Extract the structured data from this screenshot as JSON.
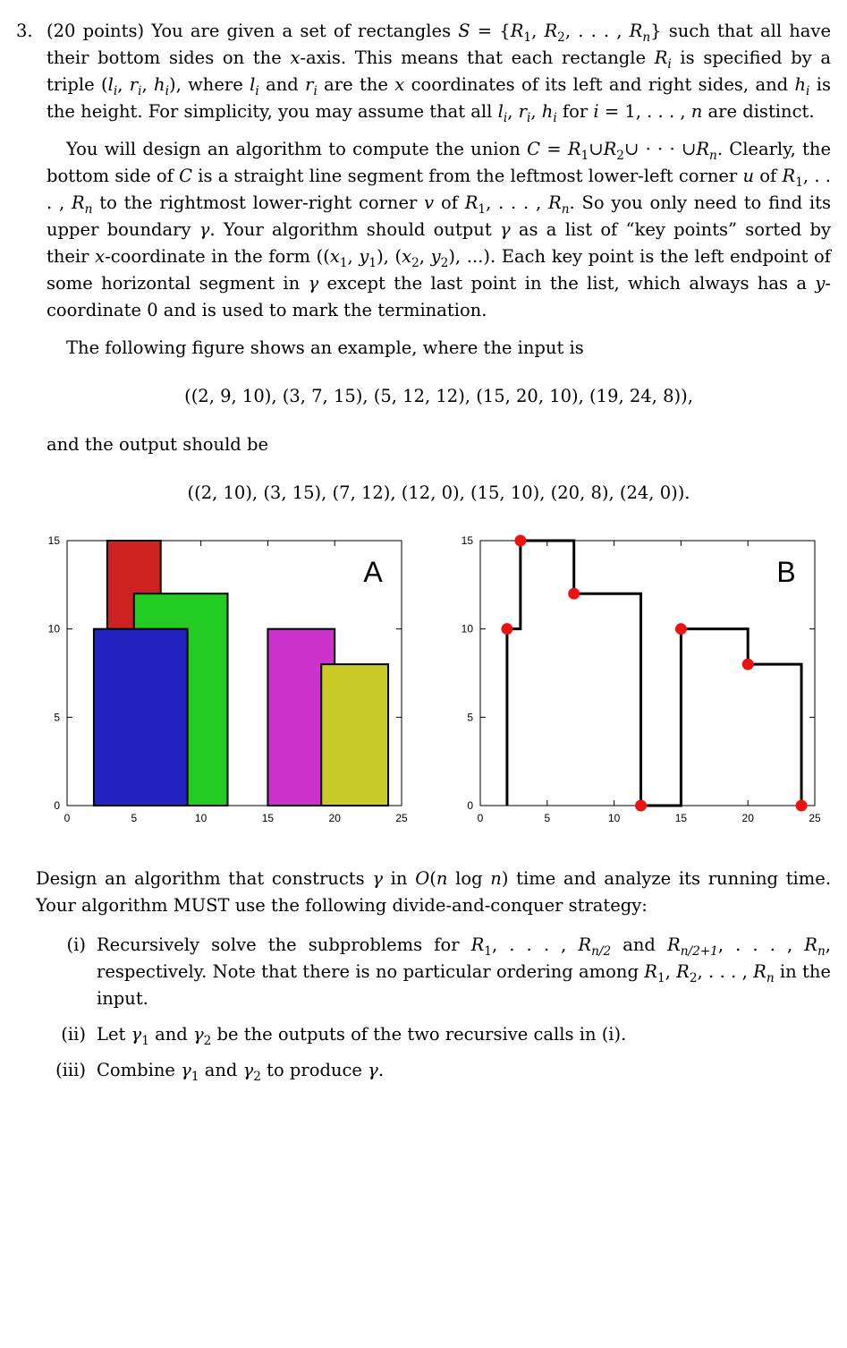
{
  "problem": {
    "number": "3.",
    "para1_runs": [
      {
        "t": "(20 points) You are given a set of rectangles "
      },
      {
        "t": "S",
        "i": 1
      },
      {
        "t": " = {"
      },
      {
        "t": "R",
        "i": 1
      },
      {
        "t": "1",
        "sub": 1
      },
      {
        "t": ", "
      },
      {
        "t": "R",
        "i": 1
      },
      {
        "t": "2",
        "sub": 1
      },
      {
        "t": ", . . . , "
      },
      {
        "t": "R",
        "i": 1
      },
      {
        "t": "n",
        "sub": 1,
        "i": 1
      },
      {
        "t": "} such that all have their bottom sides on the "
      },
      {
        "t": "x",
        "i": 1
      },
      {
        "t": "-axis.  This means that each rectangle "
      },
      {
        "t": "R",
        "i": 1
      },
      {
        "t": "i",
        "sub": 1,
        "i": 1
      },
      {
        "t": " is specified by a triple ("
      },
      {
        "t": "l",
        "i": 1
      },
      {
        "t": "i",
        "sub": 1,
        "i": 1
      },
      {
        "t": ", "
      },
      {
        "t": "r",
        "i": 1
      },
      {
        "t": "i",
        "sub": 1,
        "i": 1
      },
      {
        "t": ", "
      },
      {
        "t": "h",
        "i": 1
      },
      {
        "t": "i",
        "sub": 1,
        "i": 1
      },
      {
        "t": "), where "
      },
      {
        "t": "l",
        "i": 1
      },
      {
        "t": "i",
        "sub": 1,
        "i": 1
      },
      {
        "t": " and "
      },
      {
        "t": "r",
        "i": 1
      },
      {
        "t": "i",
        "sub": 1,
        "i": 1
      },
      {
        "t": " are the "
      },
      {
        "t": "x",
        "i": 1
      },
      {
        "t": " coordinates of its left and right sides, and "
      },
      {
        "t": "h",
        "i": 1
      },
      {
        "t": "i",
        "sub": 1,
        "i": 1
      },
      {
        "t": " is the height.  For simplicity, you may assume that all "
      },
      {
        "t": "l",
        "i": 1
      },
      {
        "t": "i",
        "sub": 1,
        "i": 1
      },
      {
        "t": ", "
      },
      {
        "t": "r",
        "i": 1
      },
      {
        "t": "i",
        "sub": 1,
        "i": 1
      },
      {
        "t": ", "
      },
      {
        "t": "h",
        "i": 1
      },
      {
        "t": "i",
        "sub": 1,
        "i": 1
      },
      {
        "t": " for "
      },
      {
        "t": "i",
        "i": 1
      },
      {
        "t": " = 1, . . . , "
      },
      {
        "t": "n",
        "i": 1
      },
      {
        "t": " are distinct."
      }
    ],
    "para2_runs": [
      {
        "t": "You will design an algorithm to compute the union "
      },
      {
        "t": "C",
        "i": 1
      },
      {
        "t": " = "
      },
      {
        "t": "R",
        "i": 1
      },
      {
        "t": "1",
        "sub": 1
      },
      {
        "t": "∪"
      },
      {
        "t": "R",
        "i": 1
      },
      {
        "t": "2",
        "sub": 1
      },
      {
        "t": "∪ · · · ∪"
      },
      {
        "t": "R",
        "i": 1
      },
      {
        "t": "n",
        "sub": 1,
        "i": 1
      },
      {
        "t": ". Clearly, the bottom side of "
      },
      {
        "t": "C",
        "i": 1
      },
      {
        "t": " is a straight line segment from the leftmost lower-left corner "
      },
      {
        "t": "u",
        "i": 1
      },
      {
        "t": " of "
      },
      {
        "t": "R",
        "i": 1
      },
      {
        "t": "1",
        "sub": 1
      },
      {
        "t": ", . . . , "
      },
      {
        "t": "R",
        "i": 1
      },
      {
        "t": "n",
        "sub": 1,
        "i": 1
      },
      {
        "t": " to the rightmost lower-right corner "
      },
      {
        "t": "v",
        "i": 1
      },
      {
        "t": " of "
      },
      {
        "t": "R",
        "i": 1
      },
      {
        "t": "1",
        "sub": 1
      },
      {
        "t": ", . . . , "
      },
      {
        "t": "R",
        "i": 1
      },
      {
        "t": "n",
        "sub": 1,
        "i": 1
      },
      {
        "t": ".  So you only need to find its upper boundary "
      },
      {
        "t": "γ",
        "i": 1
      },
      {
        "t": ".  Your algorithm should output "
      },
      {
        "t": "γ",
        "i": 1
      },
      {
        "t": " as a list of “key points” sorted by their "
      },
      {
        "t": "x",
        "i": 1
      },
      {
        "t": "-coordinate in the form (("
      },
      {
        "t": "x",
        "i": 1
      },
      {
        "t": "1",
        "sub": 1
      },
      {
        "t": ", "
      },
      {
        "t": "y",
        "i": 1
      },
      {
        "t": "1",
        "sub": 1
      },
      {
        "t": "), ("
      },
      {
        "t": "x",
        "i": 1
      },
      {
        "t": "2",
        "sub": 1
      },
      {
        "t": ", "
      },
      {
        "t": "y",
        "i": 1
      },
      {
        "t": "2",
        "sub": 1
      },
      {
        "t": "), ...).  Each key point is the left endpoint of some horizontal segment in "
      },
      {
        "t": "γ",
        "i": 1
      },
      {
        "t": " except the last point in the list, which always has a "
      },
      {
        "t": "y",
        "i": 1
      },
      {
        "t": "-coordinate 0 and is used to mark the termination."
      }
    ],
    "para3": "The following figure shows an example, where the input is",
    "input_math": "((2, 9, 10), (3, 7, 15), (5, 12, 12), (15, 20, 10), (19, 24, 8)),",
    "output_intro": "and the output should be",
    "output_math": "((2, 10), (3, 15), (7, 12), (12, 0), (15, 10), (20, 8), (24, 0)).",
    "design_runs": [
      {
        "t": "Design an algorithm that constructs "
      },
      {
        "t": "γ",
        "i": 1
      },
      {
        "t": " in "
      },
      {
        "t": "O",
        "i": 1
      },
      {
        "t": "("
      },
      {
        "t": "n",
        "i": 1
      },
      {
        "t": " log "
      },
      {
        "t": "n",
        "i": 1
      },
      {
        "t": ") time and analyze its running time.  Your algorithm MUST use the following divide-and-conquer strategy:"
      }
    ],
    "steps": [
      {
        "label": "(i)",
        "runs": [
          {
            "t": "Recursively solve the subproblems for "
          },
          {
            "t": "R",
            "i": 1
          },
          {
            "t": "1",
            "sub": 1
          },
          {
            "t": ", . . . , "
          },
          {
            "t": "R",
            "i": 1
          },
          {
            "t": "n/2",
            "sub": 1,
            "i": 1
          },
          {
            "t": " and "
          },
          {
            "t": "R",
            "i": 1
          },
          {
            "t": "n/2+1",
            "sub": 1,
            "i": 1
          },
          {
            "t": ", . . . , "
          },
          {
            "t": "R",
            "i": 1
          },
          {
            "t": "n",
            "sub": 1,
            "i": 1
          },
          {
            "t": ", respectively.  Note that there is no particular ordering among "
          },
          {
            "t": "R",
            "i": 1
          },
          {
            "t": "1",
            "sub": 1
          },
          {
            "t": ", "
          },
          {
            "t": "R",
            "i": 1
          },
          {
            "t": "2",
            "sub": 1
          },
          {
            "t": ", . . . , "
          },
          {
            "t": "R",
            "i": 1
          },
          {
            "t": "n",
            "sub": 1,
            "i": 1
          },
          {
            "t": " in the input."
          }
        ]
      },
      {
        "label": "(ii)",
        "runs": [
          {
            "t": "Let "
          },
          {
            "t": "γ",
            "i": 1
          },
          {
            "t": "1",
            "sub": 1
          },
          {
            "t": " and "
          },
          {
            "t": "γ",
            "i": 1
          },
          {
            "t": "2",
            "sub": 1
          },
          {
            "t": " be the outputs of the two recursive calls in (i)."
          }
        ]
      },
      {
        "label": "(iii)",
        "runs": [
          {
            "t": "Combine "
          },
          {
            "t": "γ",
            "i": 1
          },
          {
            "t": "1",
            "sub": 1
          },
          {
            "t": " and "
          },
          {
            "t": "γ",
            "i": 1
          },
          {
            "t": "2",
            "sub": 1
          },
          {
            "t": " to produce "
          },
          {
            "t": "γ",
            "i": 1
          },
          {
            "t": "."
          }
        ]
      }
    ]
  },
  "chart_data": [
    {
      "type": "bar",
      "subtype": "input-rectangles",
      "label": "A",
      "xlim": [
        0,
        25
      ],
      "ylim": [
        0,
        15
      ],
      "xticks": [
        0,
        5,
        10,
        15,
        20,
        25
      ],
      "yticks": [
        0,
        5,
        10,
        15
      ],
      "rectangles": [
        {
          "l": 3,
          "r": 7,
          "h": 15,
          "color": "#cc2222",
          "name": "red"
        },
        {
          "l": 5,
          "r": 12,
          "h": 12,
          "color": "#22cc22",
          "name": "green"
        },
        {
          "l": 2,
          "r": 9,
          "h": 10,
          "color": "#2222c0",
          "name": "blue"
        },
        {
          "l": 15,
          "r": 20,
          "h": 10,
          "color": "#cc33cc",
          "name": "magenta"
        },
        {
          "l": 19,
          "r": 24,
          "h": 8,
          "color": "#cbcb2a",
          "name": "yellow"
        }
      ]
    },
    {
      "type": "line",
      "subtype": "skyline-output",
      "label": "B",
      "xlim": [
        0,
        25
      ],
      "ylim": [
        0,
        15
      ],
      "xticks": [
        0,
        5,
        10,
        15,
        20,
        25
      ],
      "yticks": [
        0,
        5,
        10,
        15
      ],
      "key_points": [
        [
          2,
          10
        ],
        [
          3,
          15
        ],
        [
          7,
          12
        ],
        [
          12,
          0
        ],
        [
          15,
          10
        ],
        [
          20,
          8
        ],
        [
          24,
          0
        ]
      ],
      "line_color": "#000000",
      "point_color": "#ee1111"
    }
  ]
}
